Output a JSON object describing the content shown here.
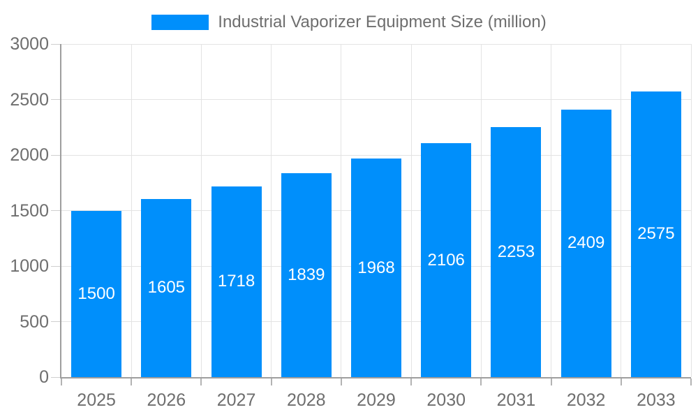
{
  "legend": {
    "label": "Industrial Vaporizer Equipment Size (million)"
  },
  "chart_data": {
    "type": "bar",
    "title": "Industrial Vaporizer Equipment Size (million)",
    "categories": [
      "2025",
      "2026",
      "2027",
      "2028",
      "2029",
      "2030",
      "2031",
      "2032",
      "2033"
    ],
    "values": [
      1500,
      1605,
      1718,
      1839,
      1968,
      2106,
      2253,
      2409,
      2575
    ],
    "series": [
      {
        "name": "Industrial Vaporizer Equipment Size (million)",
        "values": [
          1500,
          1605,
          1718,
          1839,
          1968,
          2106,
          2253,
          2409,
          2575
        ]
      }
    ],
    "xlabel": "",
    "ylabel": "",
    "ylim": [
      0,
      3000
    ],
    "yticks": [
      0,
      500,
      1000,
      1500,
      2000,
      2500,
      3000
    ],
    "grid": true,
    "legend_position": "top",
    "colors": {
      "bar": "#008FFB",
      "bar_value_label": "#ffffff",
      "axis_text": "#6e6e6e",
      "gridline": "#e3e3e3",
      "axis_line": "#9e9e9e"
    }
  }
}
